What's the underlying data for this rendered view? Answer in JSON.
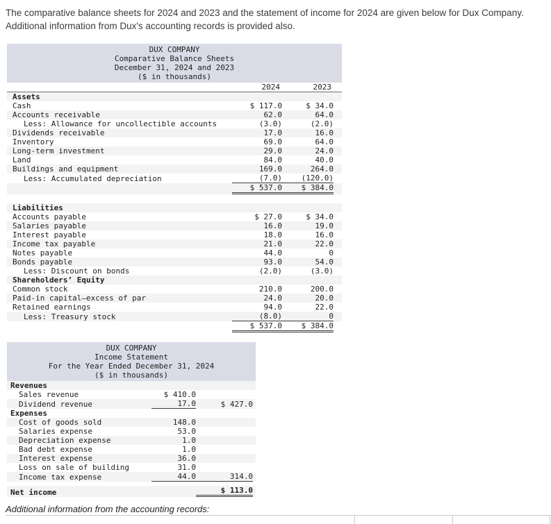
{
  "colors": {
    "table_header_shade": "#d9dce6",
    "row_stripe": "#f3f3f3"
  },
  "intro": {
    "line1": "The comparative balance sheets for 2024 and 2023 and the statement of income for 2024 are given below for Dux Company.",
    "line2": "Additional information from Dux's accounting records is provided also."
  },
  "balance_sheet": {
    "title_lines": [
      "DUX COMPANY",
      "Comparative Balance Sheets",
      "December 31, 2024 and 2023",
      "($ in thousands)"
    ],
    "col_headers": [
      "2024",
      "2023"
    ],
    "rows": [
      {
        "label": "Assets",
        "bold": true
      },
      {
        "label": "Cash",
        "v1": "$ 117.0",
        "v2": "$ 34.0"
      },
      {
        "label": "Accounts receivable",
        "v1": "62.0",
        "v2": "64.0"
      },
      {
        "label": "Less: Allowance for uncollectible accounts",
        "indent": 1,
        "v1": "(3.0)",
        "v2": "(2.0)"
      },
      {
        "label": "Dividends receivable",
        "v1": "17.0",
        "v2": "16.0"
      },
      {
        "label": "Inventory",
        "v1": "69.0",
        "v2": "64.0"
      },
      {
        "label": "Long-term investment",
        "v1": "29.0",
        "v2": "24.0"
      },
      {
        "label": "Land",
        "v1": "84.0",
        "v2": "40.0"
      },
      {
        "label": "Buildings and equipment",
        "v1": "169.0",
        "v2": "264.0"
      },
      {
        "label": "Less: Accumulated depreciation",
        "indent": 1,
        "v1": "(7.0)",
        "v2": "(120.0)",
        "ul1": "s",
        "ul2": "s"
      },
      {
        "label": "",
        "v1": "$ 537.0",
        "v2": "$ 384.0",
        "ul1": "d",
        "ul2": "d"
      },
      {
        "spacer": true,
        "h": 13
      },
      {
        "label": "Liabilities",
        "bold": true
      },
      {
        "label": "Accounts payable",
        "v1": "$ 27.0",
        "v2": "$ 34.0"
      },
      {
        "label": "Salaries payable",
        "v1": "16.0",
        "v2": "19.0"
      },
      {
        "label": "Interest payable",
        "v1": "18.0",
        "v2": "16.0"
      },
      {
        "label": "Income tax payable",
        "v1": "21.0",
        "v2": "22.0"
      },
      {
        "label": "Notes payable",
        "v1": "44.0",
        "v2": "0"
      },
      {
        "label": "Bonds payable",
        "v1": "93.0",
        "v2": "54.0"
      },
      {
        "label": "Less: Discount on bonds",
        "indent": 1,
        "v1": "(2.0)",
        "v2": "(3.0)"
      },
      {
        "label": "Shareholders’ Equity",
        "bold": true
      },
      {
        "label": "Common stock",
        "v1": "210.0",
        "v2": "200.0"
      },
      {
        "label": "Paid-in capital—excess of par",
        "v1": "24.0",
        "v2": "20.0"
      },
      {
        "label": "Retained earnings",
        "v1": "94.0",
        "v2": "22.0"
      },
      {
        "label": "Less: Treasury stock",
        "indent": 1,
        "v1": "(8.0)",
        "v2": "0",
        "ul1": "s",
        "ul2": "s"
      },
      {
        "label": "",
        "v1": "$ 537.0",
        "v2": "$ 384.0",
        "ul1": "d",
        "ul2": "d"
      }
    ]
  },
  "income_statement": {
    "title_lines": [
      "DUX COMPANY",
      "Income Statement",
      "For the Year Ended December 31, 2024",
      "($ in thousands)"
    ],
    "rows": [
      {
        "label": "Revenues",
        "bold": true
      },
      {
        "label": "Sales revenue",
        "indent": 1,
        "v1": "$ 410.0"
      },
      {
        "label": "Dividend revenue",
        "indent": 1,
        "v1": "17.0",
        "ul1": "s",
        "v2": "$ 427.0"
      },
      {
        "label": "Expenses",
        "bold": true
      },
      {
        "label": "Cost of goods sold",
        "indent": 1,
        "v1": "148.0"
      },
      {
        "label": "Salaries expense",
        "indent": 1,
        "v1": "53.0"
      },
      {
        "label": "Depreciation expense",
        "indent": 1,
        "v1": "1.0"
      },
      {
        "label": "Bad debt expense",
        "indent": 1,
        "v1": "1.0"
      },
      {
        "label": "Interest expense",
        "indent": 1,
        "v1": "36.0"
      },
      {
        "label": "Loss on sale of building",
        "indent": 1,
        "v1": "31.0"
      },
      {
        "label": "Income tax expense",
        "indent": 1,
        "v1": "44.0",
        "ul1": "s",
        "v2": "314.0",
        "ul2": "s"
      },
      {
        "spacer": true,
        "h": 6
      },
      {
        "label": "Net income",
        "bold": true,
        "v2": "$ 113.0",
        "ul2": "d"
      }
    ]
  },
  "footer": {
    "note": "Additional information from the accounting records:"
  }
}
